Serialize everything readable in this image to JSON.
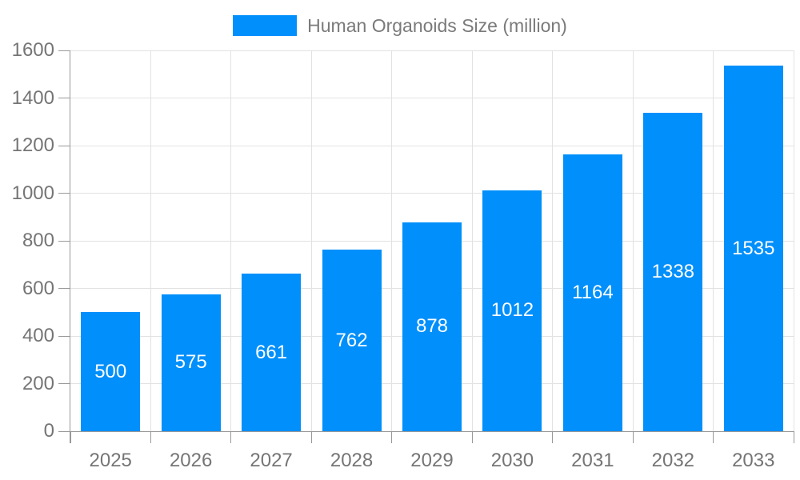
{
  "legend": {
    "label": "Human Organoids Size (million)"
  },
  "chart_data": {
    "type": "bar",
    "title": "Human Organoids Size (million)",
    "categories": [
      "2025",
      "2026",
      "2027",
      "2028",
      "2029",
      "2030",
      "2031",
      "2032",
      "2033"
    ],
    "values": [
      500,
      575,
      661,
      762,
      878,
      1012,
      1164,
      1338,
      1535
    ],
    "xlabel": "",
    "ylabel": "",
    "ylim": [
      0,
      1600
    ],
    "ytick_step": 200,
    "yticks": [
      0,
      200,
      400,
      600,
      800,
      1000,
      1200,
      1400,
      1600
    ],
    "grid": true,
    "legend_position": "top-center",
    "value_labels": "centered-inside-bars",
    "colors": {
      "bar": "#008FFB",
      "axis": "#999999",
      "gridline": "#e2e2e2",
      "tick_text": "#757575",
      "legend_text": "#7a7a7a",
      "value_text": "#ffffff",
      "background": "#ffffff"
    }
  }
}
